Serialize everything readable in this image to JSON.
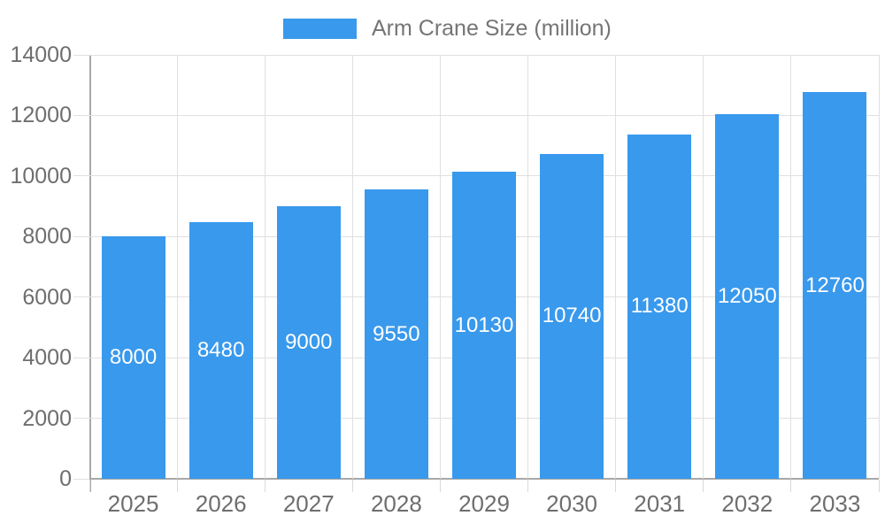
{
  "legend": {
    "label": "Arm Crane Size (million)"
  },
  "chart_data": {
    "type": "bar",
    "title": "",
    "xlabel": "",
    "ylabel": "",
    "categories": [
      "2025",
      "2026",
      "2027",
      "2028",
      "2029",
      "2030",
      "2031",
      "2032",
      "2033"
    ],
    "series": [
      {
        "name": "Arm Crane Size (million)",
        "values": [
          8000,
          8480,
          9000,
          9550,
          10130,
          10740,
          11380,
          12050,
          12760
        ]
      }
    ],
    "ylim": [
      0,
      14000
    ],
    "yticks": [
      0,
      2000,
      4000,
      6000,
      8000,
      10000,
      12000,
      14000
    ],
    "grid": true,
    "bar_value_labels": "inside-center",
    "legend_position": "top"
  },
  "colors": {
    "bar": "#3999EC",
    "bar_label": "#FFFFFF",
    "grid": "#E0E0E0",
    "tick": "#D9D9D9",
    "axis_line": "#A8A8A8",
    "axis_label": "#6E6E6E",
    "legend_text": "#757575",
    "background": "#FFFFFF"
  }
}
